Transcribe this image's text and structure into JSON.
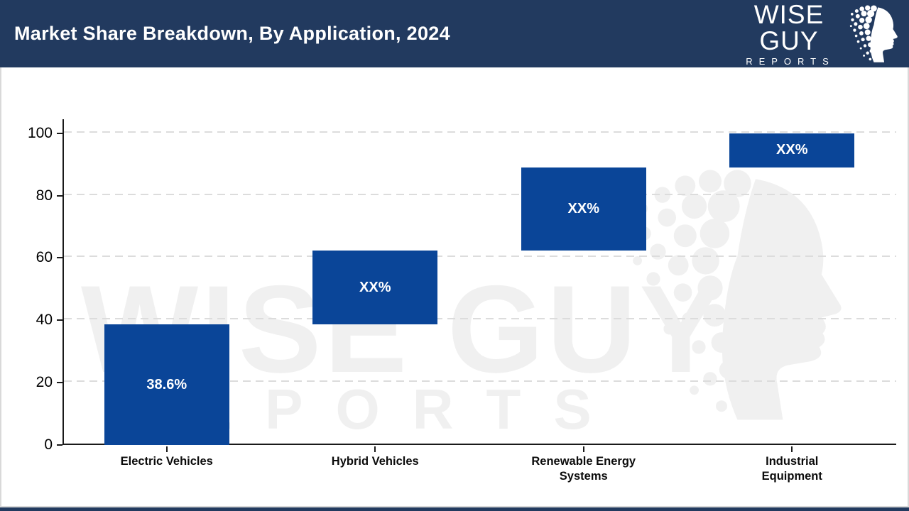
{
  "header": {
    "title": "Market Share Breakdown, By Application, 2024",
    "bg_color": "#223a5f",
    "logo": {
      "line1": "WISE GUY",
      "line2": "REPORTS"
    }
  },
  "watermark": {
    "line1": "WISE GUY",
    "line2": "REPORTS"
  },
  "chart_data": {
    "type": "bar",
    "subtype": "waterfall",
    "title": "Market Share Breakdown, By Application, 2024",
    "xlabel": "",
    "ylabel": "",
    "categories": [
      "Electric Vehicles",
      "Hybrid Vehicles",
      "Renewable Energy\nSystems",
      "Industrial\nEquipment"
    ],
    "segments": [
      {
        "category": "Electric Vehicles",
        "start": 0,
        "end": 38.6,
        "label": "38.6%"
      },
      {
        "category": "Hybrid Vehicles",
        "start": 38.6,
        "end": 62.3,
        "label": "XX%"
      },
      {
        "category": "Renewable Energy Systems",
        "start": 62.3,
        "end": 89.1,
        "label": "XX%"
      },
      {
        "category": "Industrial Equipment",
        "start": 89.1,
        "end": 100,
        "label": "XX%"
      }
    ],
    "y_ticks": [
      0,
      20,
      40,
      60,
      80,
      100
    ],
    "ylim": [
      0,
      104.5
    ],
    "grid": "dashed-horizontal",
    "bar_color": "#0a4598",
    "bar_label_color": "#ffffff",
    "axis_color": "#1a1a1a",
    "gridline_color": "#dcdcdc"
  }
}
